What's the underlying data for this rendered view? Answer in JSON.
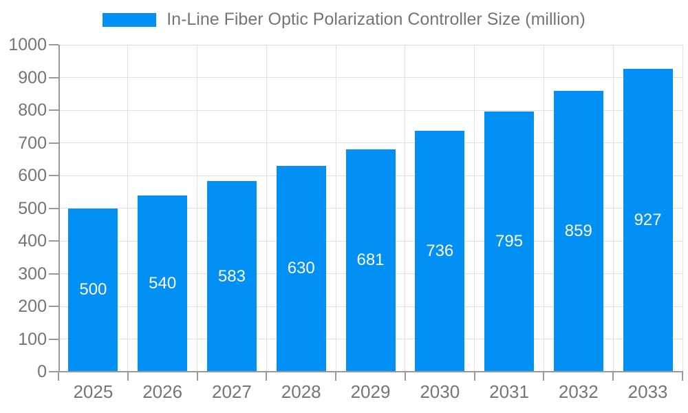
{
  "legend": {
    "label": "In-Line Fiber Optic Polarization Controller Size (million)"
  },
  "chart_data": {
    "type": "bar",
    "title": "In-Line Fiber Optic Polarization Controller Size (million)",
    "categories": [
      "2025",
      "2026",
      "2027",
      "2028",
      "2029",
      "2030",
      "2031",
      "2032",
      "2033"
    ],
    "values": [
      500,
      540,
      583,
      630,
      681,
      736,
      795,
      859,
      927
    ],
    "xlabel": "",
    "ylabel": "",
    "ylim": [
      0,
      1000
    ],
    "ytick_step": 100,
    "yticks": [
      0,
      100,
      200,
      300,
      400,
      500,
      600,
      700,
      800,
      900,
      1000
    ],
    "grid": true,
    "legend_position": "top",
    "bar_label_position": "center-inside",
    "bar_label_color": "#ffffff"
  },
  "colors": {
    "bar": "#0290f5",
    "axis_text": "#757575",
    "grid": "#e0e0e0",
    "axis": "#999999",
    "background": "#ffffff"
  }
}
